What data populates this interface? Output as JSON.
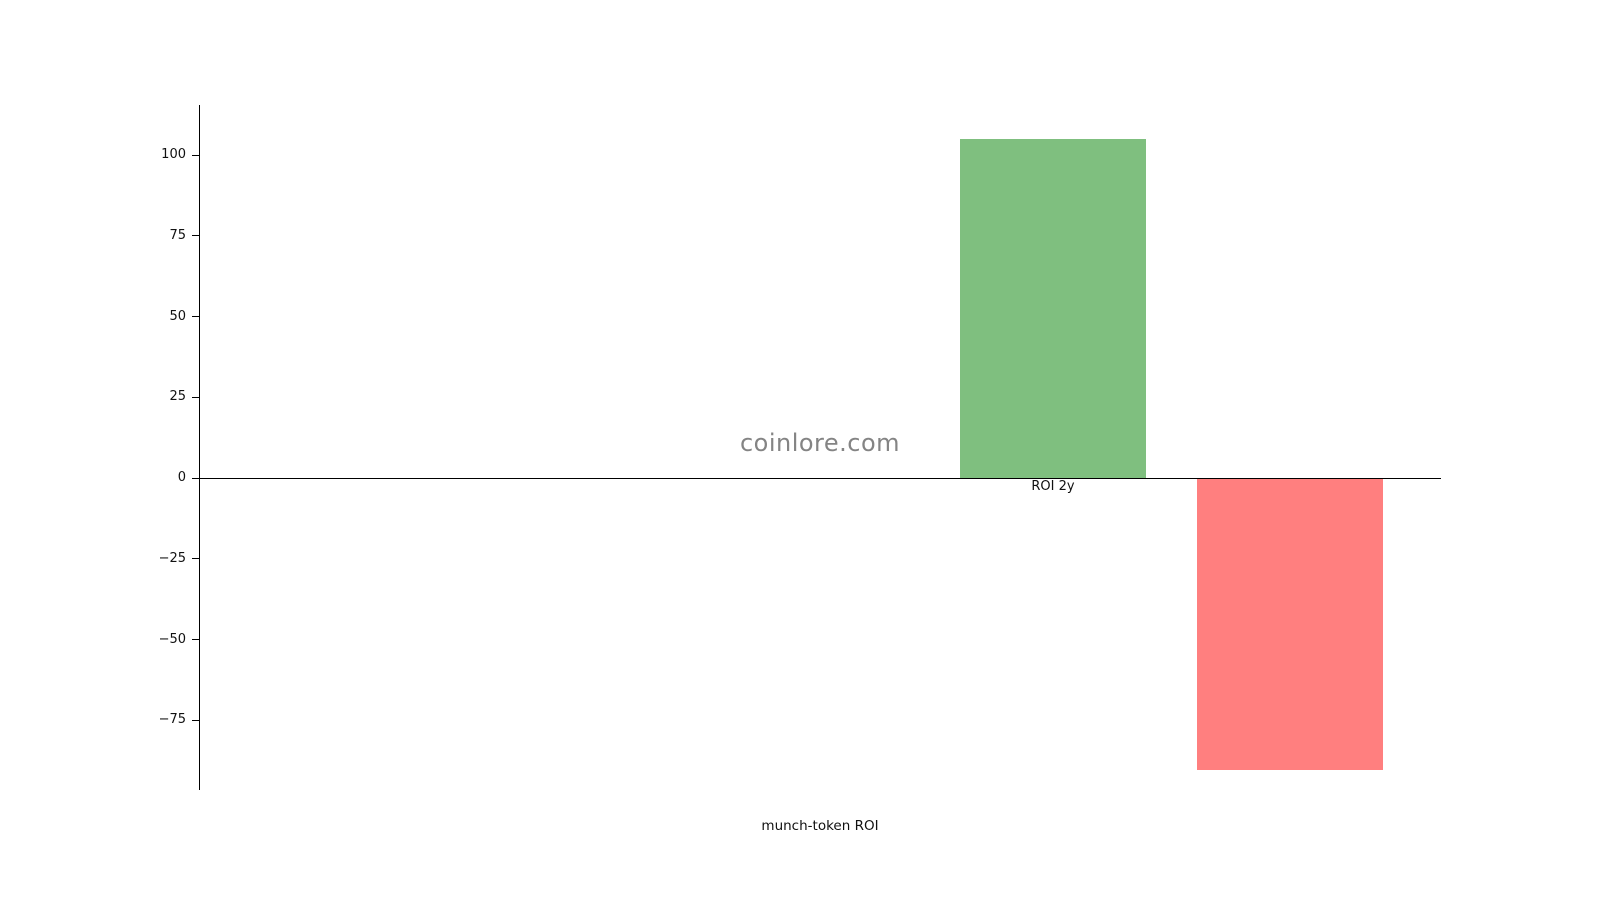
{
  "page": {
    "background_color": "#ffffff",
    "axis_color": "#000000",
    "text_color": "#111111"
  },
  "watermark": {
    "text": "coinlore.com",
    "color": "#848484"
  },
  "title": {
    "text": "munch-token ROI"
  },
  "chart_data": {
    "type": "bar",
    "title": "munch-token ROI",
    "watermark": "coinlore.com",
    "categories": [
      "ROI 2y",
      ""
    ],
    "values": [
      105,
      -90
    ],
    "colors": [
      "#7fbf7f",
      "#ff7f7f"
    ],
    "positive_color": "#7fbf7f",
    "negative_color": "#ff7f7f",
    "xlabel": "",
    "ylabel": "",
    "ylim": [
      -96,
      115
    ],
    "grid": false,
    "legend_position": "none",
    "baseline": 0,
    "yticks": {
      "values": [
        100,
        75,
        50,
        25,
        0,
        -25,
        -50,
        -75
      ],
      "labels": [
        "100",
        "75",
        "50",
        "25",
        "0",
        "−25",
        "−50",
        "−75"
      ]
    }
  }
}
